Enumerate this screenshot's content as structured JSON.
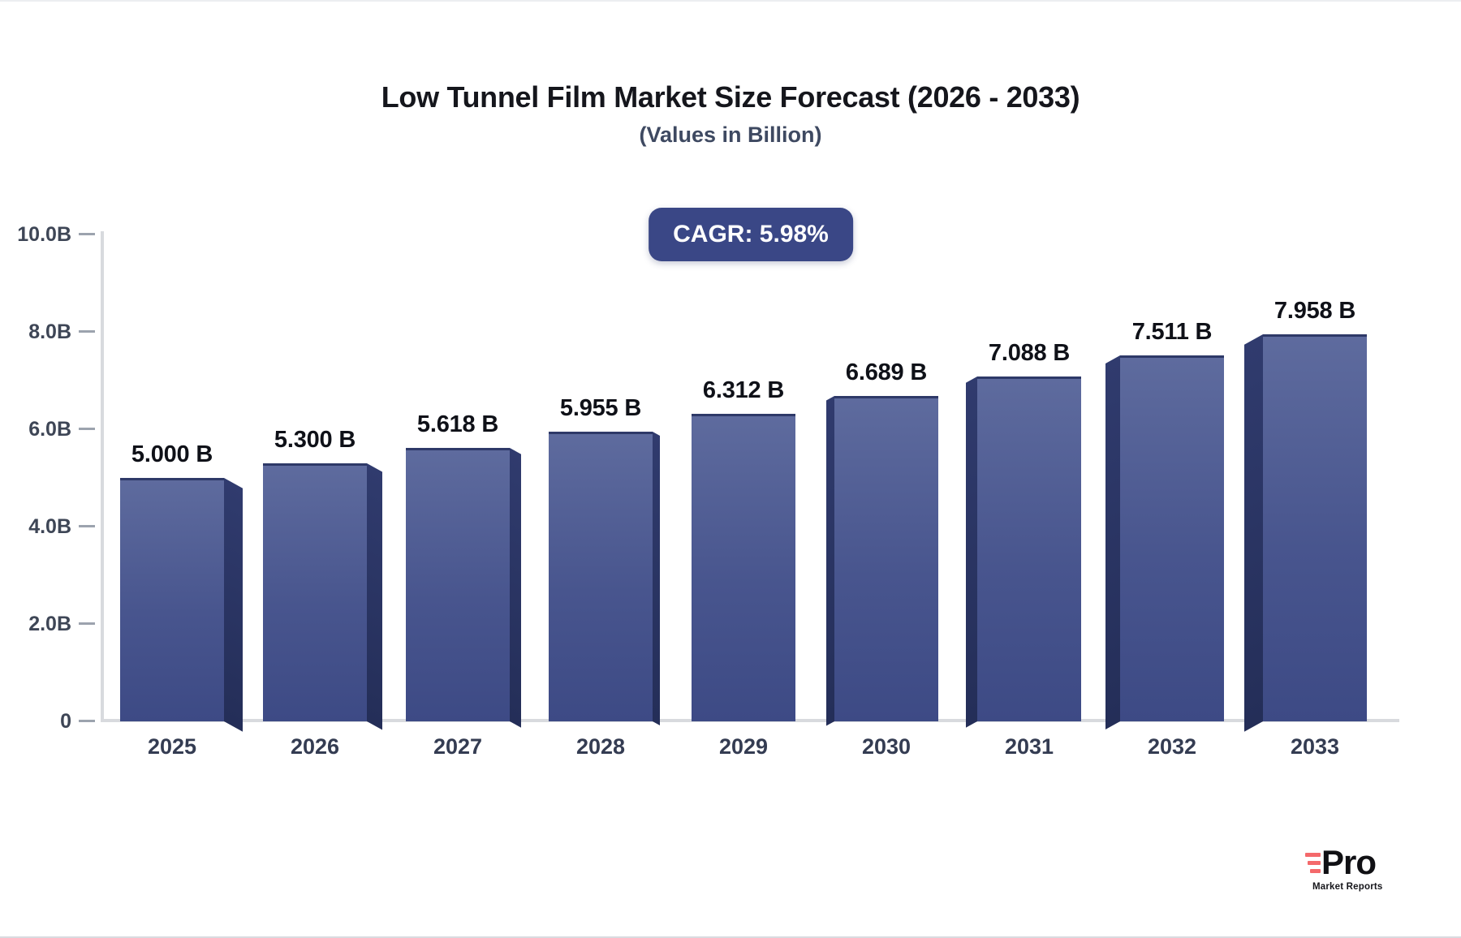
{
  "chart_data": {
    "type": "bar",
    "title": "Low Tunnel Film Market Size Forecast (2026 - 2033)",
    "subtitle": "(Values in Billion)",
    "badge_label": "CAGR: 5.98%",
    "categories": [
      "2025",
      "2026",
      "2027",
      "2028",
      "2029",
      "2030",
      "2031",
      "2032",
      "2033"
    ],
    "values": [
      5.0,
      5.3,
      5.618,
      5.955,
      6.312,
      6.689,
      7.088,
      7.511,
      7.958
    ],
    "value_labels": [
      "5.000 B",
      "5.300 B",
      "5.618 B",
      "5.955 B",
      "6.312 B",
      "6.689 B",
      "7.088 B",
      "7.511 B",
      "7.958 B"
    ],
    "y_ticks": [
      {
        "label": "10.0B",
        "value": 10
      },
      {
        "label": "8.0B",
        "value": 8
      },
      {
        "label": "6.0B",
        "value": 6
      },
      {
        "label": "4.0B",
        "value": 4
      },
      {
        "label": "2.0B",
        "value": 2
      },
      {
        "label": "0",
        "value": 0
      }
    ],
    "ylim": [
      0,
      10
    ],
    "xlabel": "",
    "ylabel": "",
    "grid": false,
    "legend": false,
    "colors": {
      "bar_face_top": "#5e6b9e",
      "bar_face_bottom": "#3d4a85",
      "bar_side": "#2a3566",
      "bar_top_edge": "#2e3968",
      "axis_line": "#d8dade",
      "tick_dash": "#9ca3ae",
      "badge_bg": "#3a4786",
      "badge_text": "#ffffff"
    }
  },
  "brand": {
    "name": "Pro",
    "tagline": "Market Reports",
    "mark_color": "#f4696b"
  }
}
